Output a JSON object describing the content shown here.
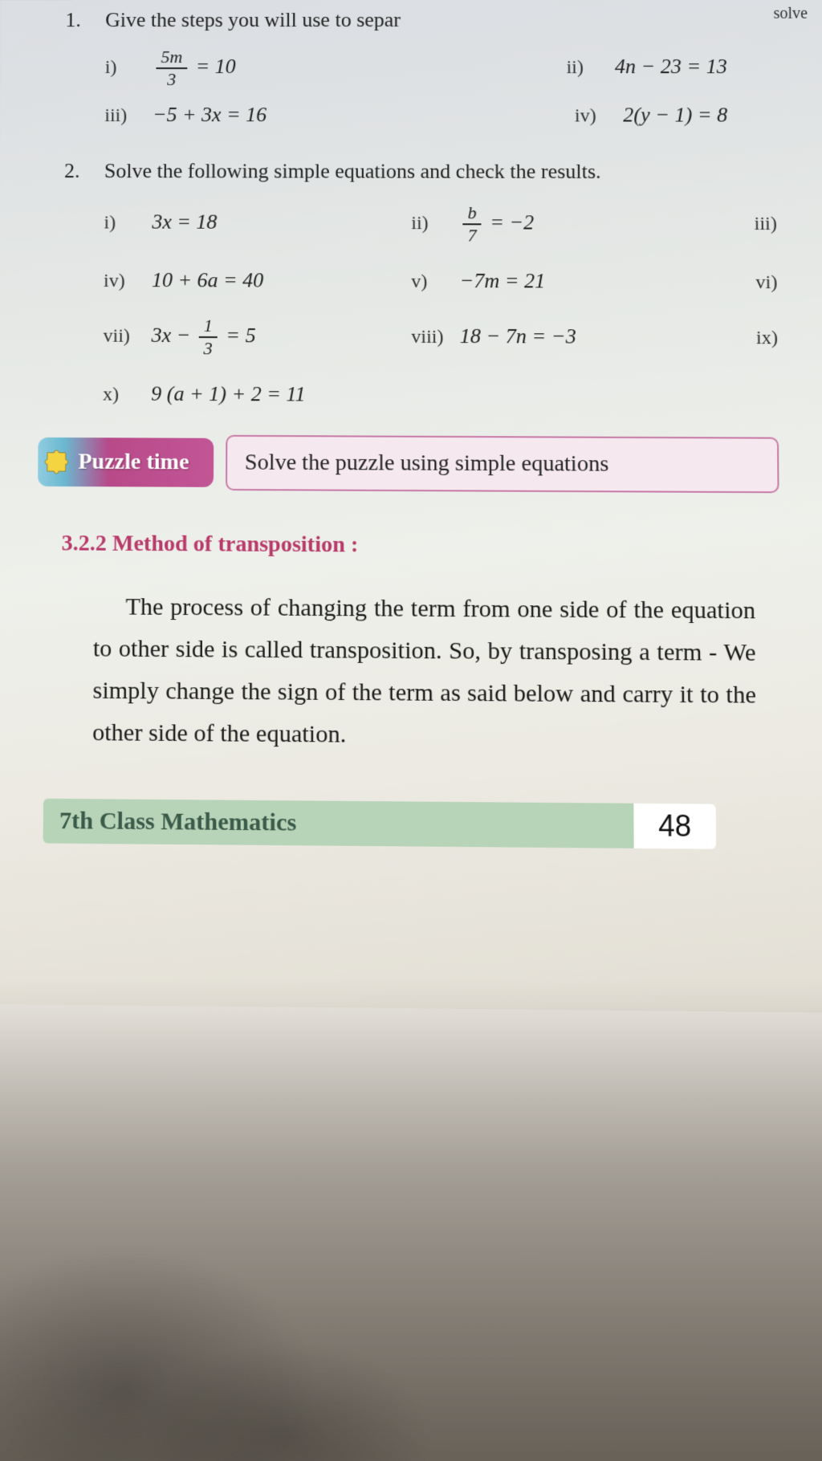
{
  "corner_text": "solve",
  "q1": {
    "num": "1.",
    "text": "Give the steps you will use to separ",
    "items": {
      "i": {
        "label": "i)",
        "eq_html": "<span class='frac'><span class='top'>5<i>m</i></span><span class='bot'>3</span></span> = 10"
      },
      "ii": {
        "label": "ii)",
        "eq_html": "4<i>n</i> − 23 = 13"
      },
      "iii": {
        "label": "iii)",
        "eq_html": "−5 + 3<i>x</i> = 16"
      },
      "iv": {
        "label": "iv)",
        "eq_html": "2(<i>y</i> − 1) = 8"
      }
    }
  },
  "q2": {
    "num": "2.",
    "text": "Solve the following simple equations and check the results.",
    "items": {
      "i": {
        "label": "i)",
        "eq_html": "3<i>x</i> = 18"
      },
      "ii": {
        "label": "ii)",
        "eq_html": "<span class='frac'><span class='top'><i>b</i></span><span class='bot'>7</span></span> = −2"
      },
      "iii": {
        "label": "iii)",
        "eq_html": ""
      },
      "iv": {
        "label": "iv)",
        "eq_html": "10 + 6a = 40"
      },
      "v": {
        "label": "v)",
        "eq_html": "−7<i>m</i> = 21"
      },
      "vi": {
        "label": "vi)",
        "eq_html": ""
      },
      "vii": {
        "label": "vii)",
        "eq_html": "3<i>x</i> − <span class='frac'><span class='top'>1</span><span class='bot'>3</span></span> = 5"
      },
      "viii": {
        "label": "viii)",
        "eq_html": "18 − 7<i>n</i> = −3"
      },
      "ix": {
        "label": "ix)",
        "eq_html": ""
      },
      "x": {
        "label": "x)",
        "eq_html": "9 (<i>a</i> + 1) + 2 = 11"
      }
    }
  },
  "puzzle": {
    "badge": "Puzzle time",
    "desc": "Solve the puzzle using simple equations"
  },
  "section": {
    "heading": "3.2.2 Method of transposition :",
    "para": "The process of changing the term from one side of the equation to other side is called transposition. So, by transposing a term - We simply change the sign of the term as said below and carry it to the other side of the equation."
  },
  "footer": {
    "title": "7th Class Mathematics",
    "page": "48"
  },
  "colors": {
    "heading": "#b83a6a",
    "puzzle_badge_start": "#8fcce0",
    "puzzle_badge_end": "#c25595",
    "puzzle_box_bg": "#f5e8ee",
    "puzzle_box_border": "#c87ba8",
    "footer_bar": "#b8d4b8",
    "footer_text": "#3a5a4a"
  }
}
